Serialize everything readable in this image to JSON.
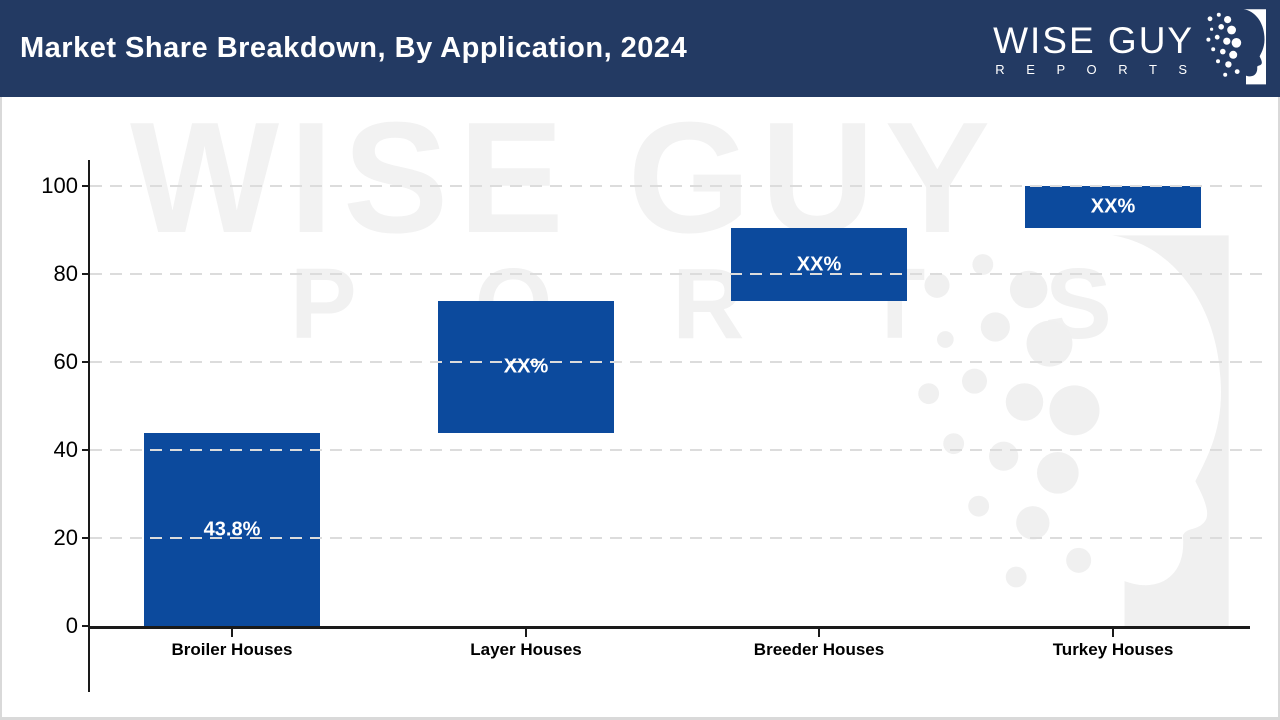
{
  "header": {
    "title": "Market Share Breakdown, By Application, 2024",
    "logo": {
      "wordmark": "WISE GUY",
      "reports": "R E P O R T S"
    }
  },
  "watermark": {
    "line1": "WISE GUY",
    "line2": "P O R T S"
  },
  "chart_data": {
    "type": "bar",
    "subtype": "waterfall",
    "title": "Market Share Breakdown, By Application, 2024",
    "categories": [
      "Broiler Houses",
      "Layer Houses",
      "Breeder Houses",
      "Turkey Houses"
    ],
    "segments": [
      {
        "category": "Broiler Houses",
        "start": 0,
        "end": 43.8,
        "label": "43.8%"
      },
      {
        "category": "Layer Houses",
        "start": 43.8,
        "end": 73.8,
        "label": "XX%"
      },
      {
        "category": "Breeder Houses",
        "start": 73.8,
        "end": 90.5,
        "label": "XX%"
      },
      {
        "category": "Turkey Houses",
        "start": 90.5,
        "end": 100,
        "label": "XX%"
      }
    ],
    "yticks": [
      0,
      20,
      40,
      60,
      80,
      100
    ],
    "ylim": [
      0,
      105
    ],
    "xlabel": "",
    "ylabel": "",
    "grid": true,
    "gridline_style": "dashed",
    "legend": false,
    "bar_color": "#0C4A9D",
    "bar_label_color": "#ffffff"
  },
  "colors": {
    "header_bg": "#233A63",
    "panel_bg": "#ffffff",
    "axis": "#1a1a1a",
    "gridline": "#dcdcdc",
    "watermark": "#f2f2f2",
    "border": "#d9d9d9"
  }
}
